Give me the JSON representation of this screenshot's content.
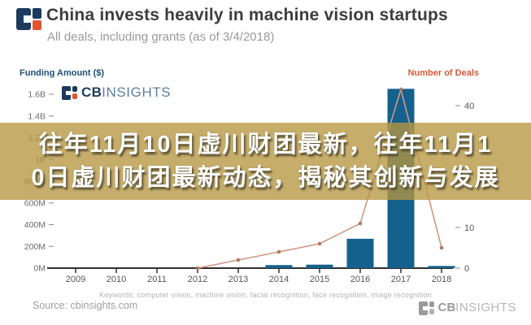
{
  "header": {
    "title": "China invests heavily in machine vision startups",
    "subtitle": "All deals, including grants (as of 3/4/2018)"
  },
  "watermark": {
    "cb": "CB",
    "insights": "INSIGHTS"
  },
  "overlay": {
    "full_text": "往年11月10日虚川财团最新，往年11月10日虚川财团最新动态，揭秘其创新与发展",
    "text_line1": "往年11月10日虚川财团最新，往年11月1",
    "text_line2": "0日虚川财团最新动态，揭秘其创新与发展"
  },
  "footer": {
    "keywords": "Keywords: computer vision, machine vision, facial recognition, face recognition, image recognition",
    "source": "Source: cbinsights.com",
    "logo_cb": "CB",
    "logo_insights": "INSIGHTS"
  },
  "colors": {
    "bar": "#15618d",
    "deals_line": "#d09783",
    "deals_dot": "#b07a66",
    "banner": "#c6ad6a",
    "left_axis_title": "#1d4e79",
    "right_axis_title": "#d85b3a",
    "axis_line": "#2f2f2f",
    "tick_text": "#6b6b6b"
  },
  "chart_data": {
    "type": "bar",
    "title": "China invests heavily in machine vision startups",
    "subtitle": "All deals, including grants (as of 3/4/2018)",
    "categories": [
      "2009",
      "2010",
      "2011",
      "2012",
      "2013",
      "2014",
      "2015",
      "2016",
      "2017",
      "2018"
    ],
    "series": [
      {
        "name": "Funding Amount ($)",
        "render": "bar",
        "axis": "left",
        "unit": "USD millions",
        "values": [
          0,
          0,
          0,
          0,
          0,
          28,
          32,
          270,
          1650,
          20
        ]
      },
      {
        "name": "Number of Deals",
        "render": "line",
        "axis": "right",
        "values": [
          null,
          null,
          null,
          0,
          2,
          4,
          6,
          11,
          44,
          5
        ]
      }
    ],
    "left_axis": {
      "label": "Funding Amount ($)",
      "range_musd": [
        0,
        1600
      ],
      "ticks": [
        {
          "label": "0M",
          "musd": 0
        },
        {
          "label": "200M",
          "musd": 200
        },
        {
          "label": "400M",
          "musd": 400
        },
        {
          "label": "600M",
          "musd": 600
        },
        {
          "label": "800M",
          "musd": 800
        },
        {
          "label": "1B",
          "musd": 1000
        },
        {
          "label": "1.2B",
          "musd": 1200
        },
        {
          "label": "1.4B",
          "musd": 1400
        },
        {
          "label": "1.6B",
          "musd": 1600
        }
      ]
    },
    "right_axis": {
      "label": "Number of Deals",
      "range": [
        0,
        40
      ],
      "ticks": [
        {
          "label": "0",
          "deals": 0
        },
        {
          "label": "10",
          "deals": 10
        },
        {
          "label": "40",
          "deals": 40
        }
      ]
    },
    "grid": false,
    "legend_position": "none"
  }
}
